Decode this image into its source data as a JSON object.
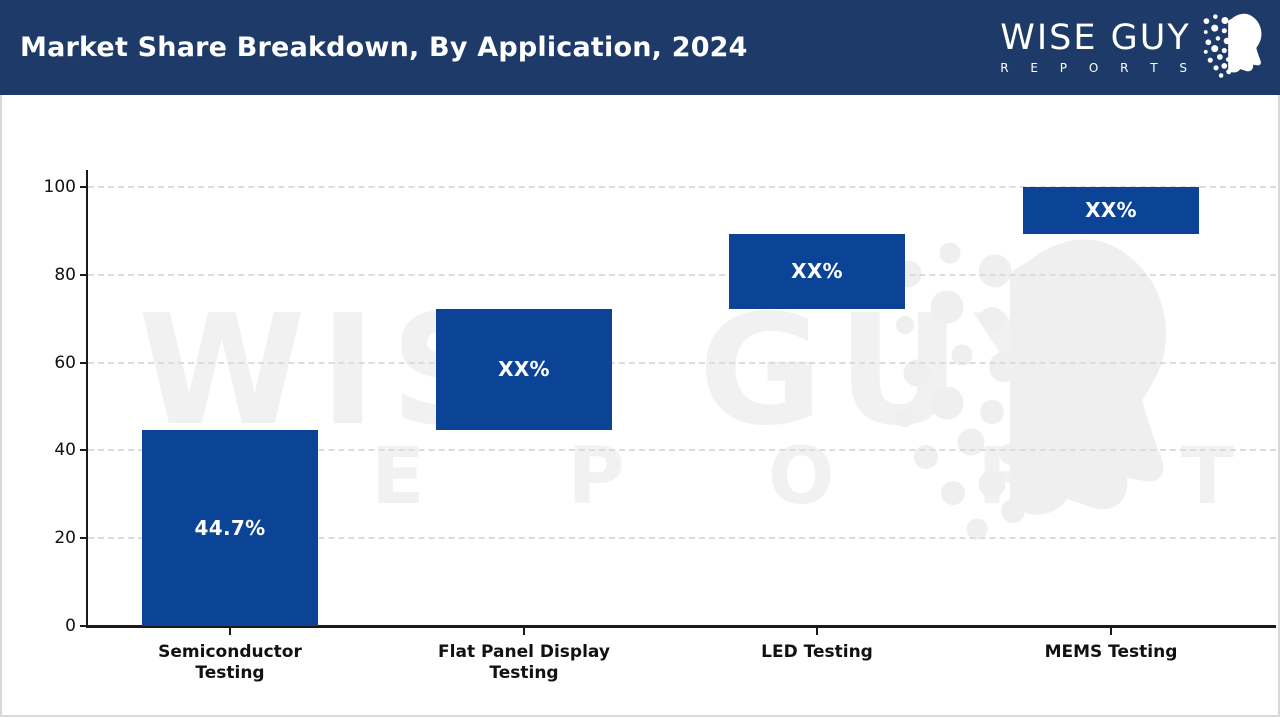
{
  "header": {
    "title": "Market Share Breakdown, By Application, 2024",
    "bg_color": "#1e3a68",
    "logo": {
      "wordmark": "WISE GUY",
      "subtitle": "R E P O R T S",
      "face_icon": "dotted-head-profile-icon"
    }
  },
  "watermark": {
    "wordmark": "WISE GUY",
    "subtitle": "R E P O R T S",
    "face_icon": "dotted-head-profile-icon",
    "color": "#f1f1f1"
  },
  "chart_data": {
    "type": "bar",
    "subtype": "waterfall",
    "title": "Market Share Breakdown, By Application, 2024",
    "categories": [
      [
        "Semiconductor",
        "Testing"
      ],
      [
        "Flat Panel Display",
        "Testing"
      ],
      [
        "LED Testing"
      ],
      [
        "MEMS Testing"
      ]
    ],
    "segments": [
      {
        "category": "Semiconductor Testing",
        "start": 0,
        "end": 44.7,
        "value": 44.7,
        "label": "44.7%"
      },
      {
        "category": "Flat Panel Display Testing",
        "start": 44.7,
        "end": 72.3,
        "value": 27.6,
        "label": "XX%"
      },
      {
        "category": "LED Testing",
        "start": 72.3,
        "end": 89.3,
        "value": 17.0,
        "label": "XX%"
      },
      {
        "category": "MEMS Testing",
        "start": 89.3,
        "end": 100,
        "value": 10.7,
        "label": "XX%"
      }
    ],
    "ylim": [
      0,
      100
    ],
    "yticks": [
      0,
      20,
      40,
      60,
      80,
      100
    ],
    "xlabel": "",
    "ylabel": "",
    "legend": "none",
    "grid": "horizontal-dashed",
    "bar_color": "#0b4397",
    "bar_label_color": "#ffffff",
    "axis_color": "#1a1a1a",
    "gridline_color": "#dcdcdc"
  },
  "colors": {
    "header_bg": "#1e3a68",
    "frame_border": "#d9d9d9",
    "watermark": "#f1f1f1"
  }
}
